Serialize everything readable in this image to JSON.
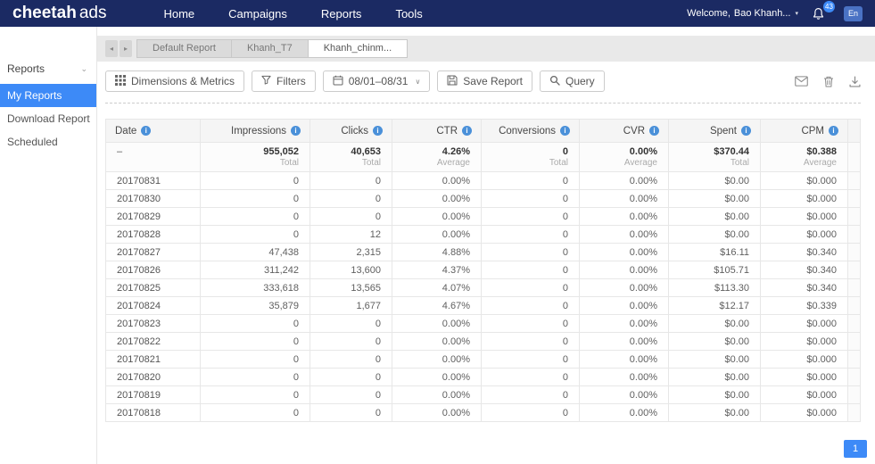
{
  "navbar": {
    "logo_bold": "cheetah",
    "logo_light": "ads",
    "items": [
      "Home",
      "Campaigns",
      "Reports",
      "Tools"
    ],
    "welcome_label": "Welcome,",
    "username": "Bao Khanh...",
    "bell_badge": "43",
    "language": "En"
  },
  "sidebar": {
    "section_label": "Reports",
    "items": [
      {
        "label": "My Reports",
        "active": true
      },
      {
        "label": "Download Report",
        "active": false
      },
      {
        "label": "Scheduled",
        "active": false
      }
    ]
  },
  "tabs": [
    {
      "label": "Default Report",
      "active": false
    },
    {
      "label": "Khanh_T7",
      "active": false
    },
    {
      "label": "Khanh_chinm...",
      "active": true
    }
  ],
  "toolbar": {
    "dimensions_metrics": "Dimensions & Metrics",
    "filters": "Filters",
    "date_range": "08/01–08/31",
    "save_report": "Save Report",
    "query": "Query"
  },
  "table": {
    "columns": [
      "Date",
      "Impressions",
      "Clicks",
      "CTR",
      "Conversions",
      "CVR",
      "Spent",
      "CPM"
    ],
    "summary": {
      "date": "–",
      "values": [
        {
          "value": "955,052",
          "label": "Total"
        },
        {
          "value": "40,653",
          "label": "Total"
        },
        {
          "value": "4.26%",
          "label": "Average"
        },
        {
          "value": "0",
          "label": "Total"
        },
        {
          "value": "0.00%",
          "label": "Average"
        },
        {
          "value": "$370.44",
          "label": "Total"
        },
        {
          "value": "$0.388",
          "label": "Average"
        }
      ]
    },
    "rows": [
      [
        "20170831",
        "0",
        "0",
        "0.00%",
        "0",
        "0.00%",
        "$0.00",
        "$0.000"
      ],
      [
        "20170830",
        "0",
        "0",
        "0.00%",
        "0",
        "0.00%",
        "$0.00",
        "$0.000"
      ],
      [
        "20170829",
        "0",
        "0",
        "0.00%",
        "0",
        "0.00%",
        "$0.00",
        "$0.000"
      ],
      [
        "20170828",
        "0",
        "12",
        "0.00%",
        "0",
        "0.00%",
        "$0.00",
        "$0.000"
      ],
      [
        "20170827",
        "47,438",
        "2,315",
        "4.88%",
        "0",
        "0.00%",
        "$16.11",
        "$0.340"
      ],
      [
        "20170826",
        "311,242",
        "13,600",
        "4.37%",
        "0",
        "0.00%",
        "$105.71",
        "$0.340"
      ],
      [
        "20170825",
        "333,618",
        "13,565",
        "4.07%",
        "0",
        "0.00%",
        "$113.30",
        "$0.340"
      ],
      [
        "20170824",
        "35,879",
        "1,677",
        "4.67%",
        "0",
        "0.00%",
        "$12.17",
        "$0.339"
      ],
      [
        "20170823",
        "0",
        "0",
        "0.00%",
        "0",
        "0.00%",
        "$0.00",
        "$0.000"
      ],
      [
        "20170822",
        "0",
        "0",
        "0.00%",
        "0",
        "0.00%",
        "$0.00",
        "$0.000"
      ],
      [
        "20170821",
        "0",
        "0",
        "0.00%",
        "0",
        "0.00%",
        "$0.00",
        "$0.000"
      ],
      [
        "20170820",
        "0",
        "0",
        "0.00%",
        "0",
        "0.00%",
        "$0.00",
        "$0.000"
      ],
      [
        "20170819",
        "0",
        "0",
        "0.00%",
        "0",
        "0.00%",
        "$0.00",
        "$0.000"
      ],
      [
        "20170818",
        "0",
        "0",
        "0.00%",
        "0",
        "0.00%",
        "$0.00",
        "$0.000"
      ]
    ]
  },
  "pagination": {
    "page": "1"
  },
  "colors": {
    "accent": "#3d8af7",
    "navbar_bg": "#1b2a63",
    "info_icon": "#4a90d9"
  }
}
